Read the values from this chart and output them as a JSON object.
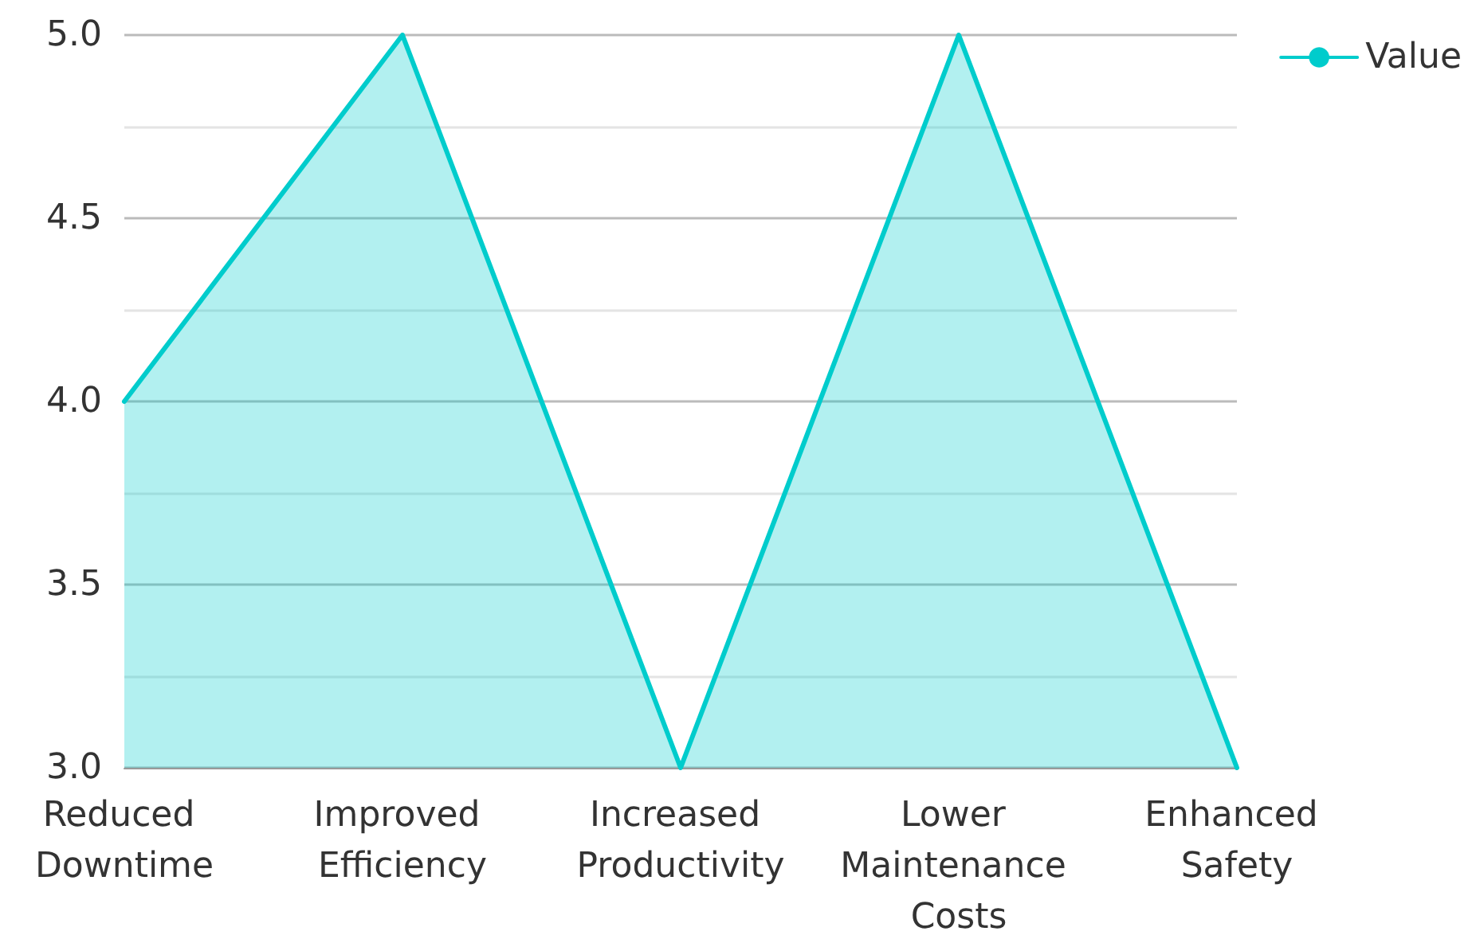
{
  "chart_data": {
    "type": "area",
    "categories": [
      "Reduced Downtime",
      "Improved Efficiency",
      "Increased Productivity",
      "Lower Maintenance Costs",
      "Enhanced Safety"
    ],
    "series": [
      {
        "name": "Value",
        "color": "#00cccc",
        "values": [
          4,
          5,
          3,
          5,
          3
        ]
      }
    ],
    "ylim": [
      3,
      5
    ],
    "yticks": [
      {
        "value": 3,
        "label": "3.0"
      },
      {
        "value": 3.25,
        "label": null
      },
      3.5,
      {
        "value": 3.75,
        "label": null
      },
      {
        "value": 4,
        "label": "4.0"
      },
      {
        "value": 4.25,
        "label": null
      },
      4.5,
      {
        "value": 4.75,
        "label": null
      },
      {
        "value": 5,
        "label": "5.0"
      }
    ],
    "grid": "y",
    "legend": "top right",
    "marker": "none",
    "line_style": "solid"
  }
}
